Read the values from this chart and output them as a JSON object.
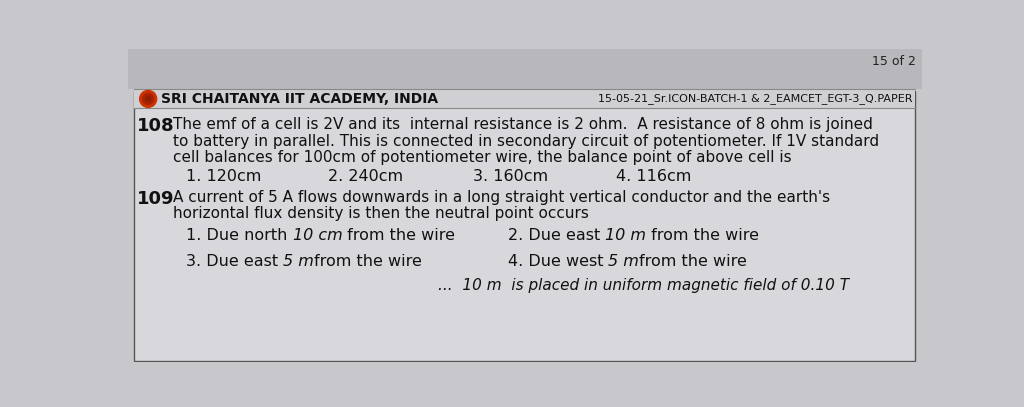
{
  "page_number": "15 of 2",
  "header_left": "SRI CHAITANYA IIT ACADEMY, INDIA",
  "header_right": "15-05-21_Sr.ICON-BATCH-1 & 2_EAMCET_EGT-3_Q.PAPER",
  "background_color": "#c8c8cc",
  "content_bg": "#e8e8ec",
  "border_color": "#000000",
  "q108_number": "108",
  "q108_text_line1": "The emf of a cell is 2V and its  internal resistance is 2 ohm.  A resistance of 8 ohm is joined",
  "q108_text_line2": "to battery in parallel. This is connected in secondary circuit of potentiometer. If 1V standard",
  "q108_text_line3": "cell balances for 100cm of potentiometer wire, the balance point of above cell is",
  "q108_opt1": "1. 120cm",
  "q108_opt2": "2. 240cm",
  "q108_opt3": "3. 160cm",
  "q108_opt4": "4. 116cm",
  "q109_number": "109",
  "q109_text_line1": "A current of 5 A flows downwards in a long straight vertical conductor and the earth's",
  "q109_text_line2": "horizontal flux density is then the neutral point occurs",
  "q109_opt1_pre": "1. Due north ",
  "q109_opt1_italic": "10 cm",
  "q109_opt1_post": " from the wire",
  "q109_opt2_pre": "2. Due east ",
  "q109_opt2_italic": "10 m",
  "q109_opt2_post": " from the wire",
  "q109_opt3_pre": "3. Due east ",
  "q109_opt3_italic": "5 m",
  "q109_opt3_post": "from the wire",
  "q109_opt4_pre": "4. Due west ",
  "q109_opt4_italic": "5 m",
  "q109_opt4_post": "from the wire",
  "bottom_text": "uniform magnetic field of 0.10 T",
  "text_color": "#111111"
}
